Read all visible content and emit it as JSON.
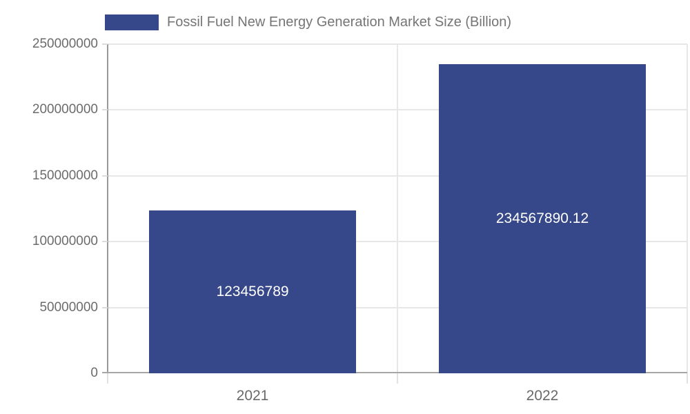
{
  "chart_data": {
    "type": "bar",
    "title": "Fossil Fuel New Energy Generation Market Size (Billion)",
    "categories": [
      "2021",
      "2022"
    ],
    "values": [
      123456789,
      234567890.12
    ],
    "value_labels": [
      "123456789",
      "234567890.12"
    ],
    "ylim": [
      0,
      250000000
    ],
    "ytick_step": 50000000,
    "ytick_labels": [
      "0",
      "50000000",
      "100000000",
      "150000000",
      "200000000",
      "250000000"
    ],
    "grid": true,
    "legend_position": "top-left",
    "bar_color": "#36488A",
    "value_label_color": "#ffffff",
    "title_color": "#757575",
    "axis_label_color": "#6b6b6b"
  }
}
